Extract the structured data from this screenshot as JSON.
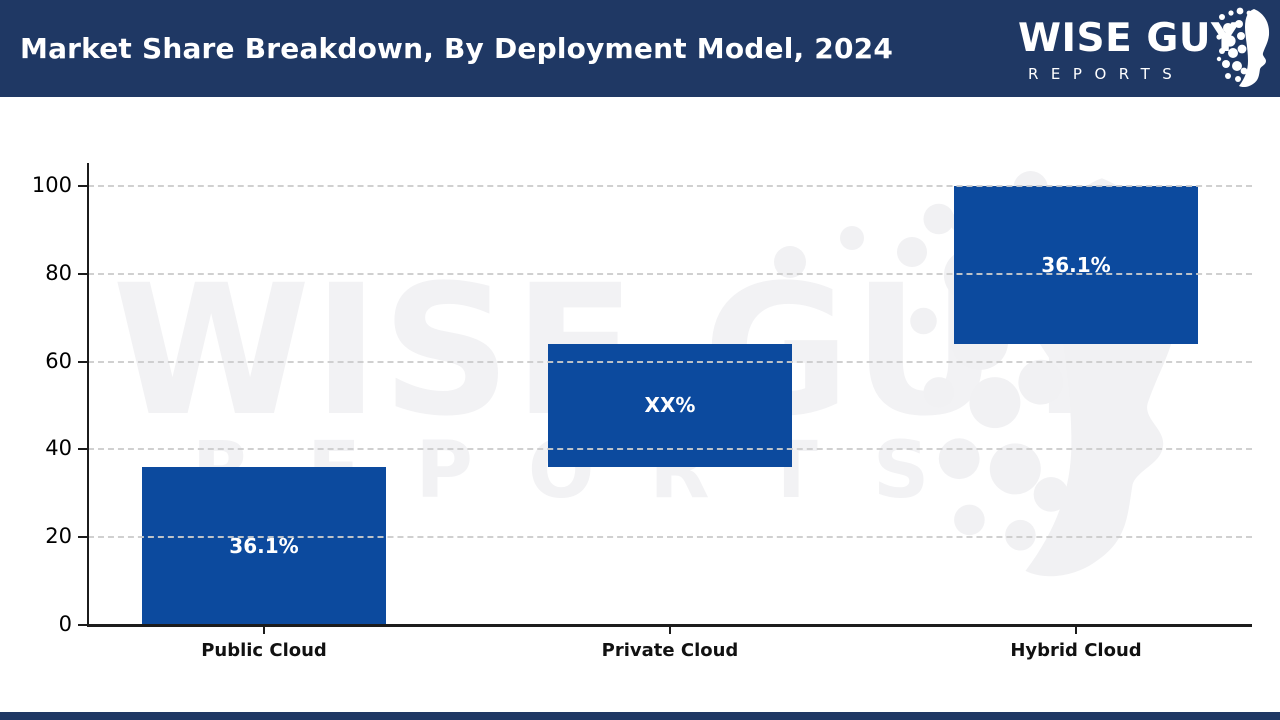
{
  "header": {
    "title": "Market Share Breakdown, By Deployment Model, 2024",
    "logo": {
      "name": "WISE GUY",
      "sub": "REPORTS"
    }
  },
  "watermark": {
    "name": "WISE GUY",
    "sub": "R E P O R T S"
  },
  "chart_data": {
    "type": "bar",
    "variant": "floating-stacked-segments",
    "title": "Market Share Breakdown, By Deployment Model, 2024",
    "categories": [
      "Public Cloud",
      "Private Cloud",
      "Hybrid Cloud"
    ],
    "bars": [
      {
        "category": "Public Cloud",
        "label": "36.1%",
        "start": 0,
        "end": 36.1
      },
      {
        "category": "Private Cloud",
        "label": "XX%",
        "start": 36.1,
        "end": 63.9
      },
      {
        "category": "Hybrid Cloud",
        "label": "36.1%",
        "start": 63.9,
        "end": 100
      }
    ],
    "xlabel": "",
    "ylabel": "",
    "ylim": [
      0,
      100
    ],
    "yticks": [
      0,
      20,
      40,
      60,
      80,
      100
    ],
    "grid": "horizontal-dashed",
    "legend": "none",
    "bar_color": "#0c4a9e",
    "bar_label_color": "#ffffff"
  },
  "colors": {
    "header_bg": "#1f3864",
    "footer_bg": "#1f3864",
    "watermark": "#f2f2f4",
    "grid": "#cccccc",
    "axis": "#1c1c1c"
  }
}
